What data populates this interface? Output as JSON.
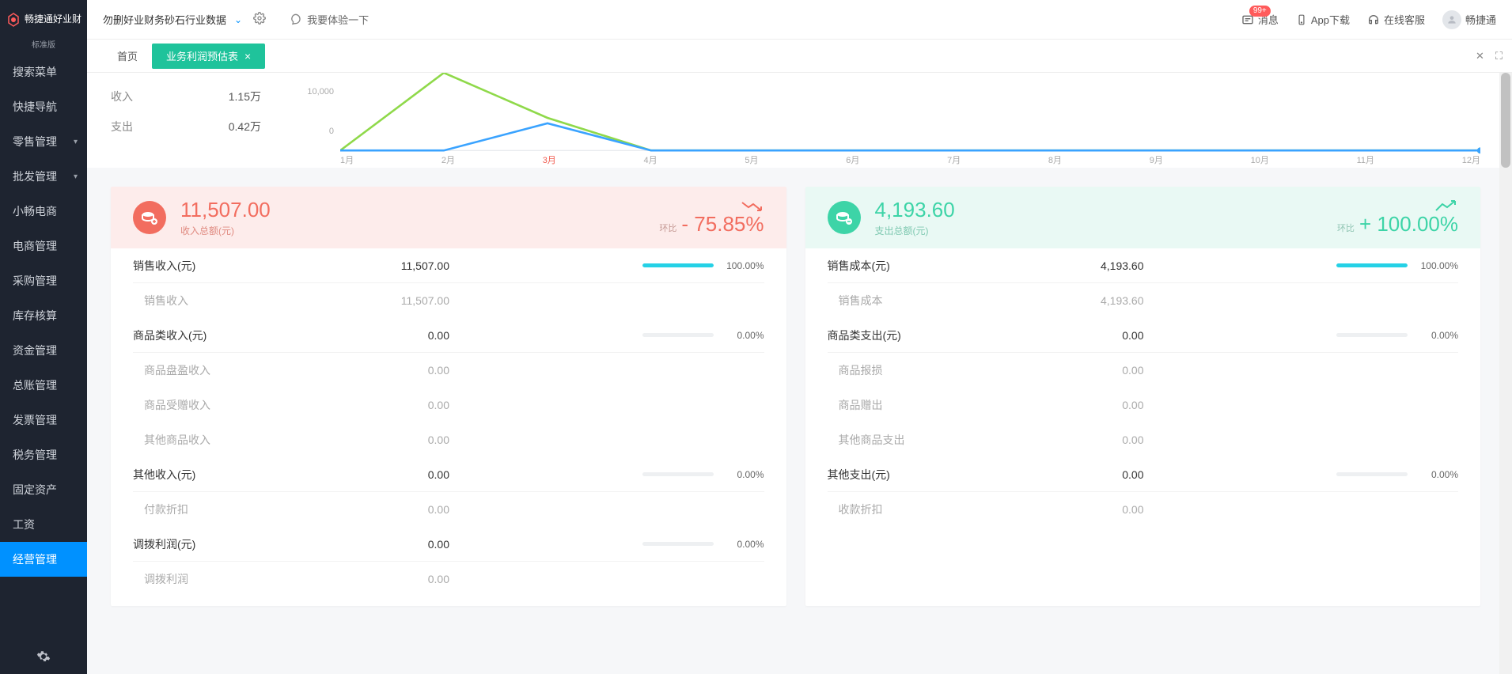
{
  "brand": {
    "name": "畅捷通好业财",
    "edition": "标准版"
  },
  "org": {
    "name": "勿删好业财务砂石行业数据"
  },
  "topbar": {
    "try": "我要体验一下",
    "msg": "消息",
    "msg_badge": "99+",
    "app": "App下载",
    "cs": "在线客服",
    "user": "畅捷通"
  },
  "sidebar": {
    "items": [
      {
        "label": "搜索菜单"
      },
      {
        "label": "快捷导航"
      },
      {
        "label": "零售管理",
        "sub": true
      },
      {
        "label": "批发管理",
        "sub": true
      },
      {
        "label": "小畅电商"
      },
      {
        "label": "电商管理"
      },
      {
        "label": "采购管理"
      },
      {
        "label": "库存核算"
      },
      {
        "label": "资金管理"
      },
      {
        "label": "总账管理"
      },
      {
        "label": "发票管理"
      },
      {
        "label": "税务管理"
      },
      {
        "label": "固定资产"
      },
      {
        "label": "工资"
      },
      {
        "label": "经营管理",
        "active": true
      }
    ]
  },
  "tabs": {
    "home": "首页",
    "active": "业务利润预估表"
  },
  "summary": {
    "income_label": "收入",
    "income_value": "1.15万",
    "expense_label": "支出",
    "expense_value": "0.42万"
  },
  "chart": {
    "y_tick_label": "10,000",
    "y_zero": "0",
    "months": [
      "1月",
      "2月",
      "3月",
      "4月",
      "5月",
      "6月",
      "7月",
      "8月",
      "9月",
      "10月",
      "11月",
      "12月"
    ],
    "hot_index": 2,
    "series1": {
      "color": "#3aa3ff",
      "points": [
        0,
        0,
        35,
        0,
        0,
        0,
        0,
        0,
        0,
        0,
        0,
        0
      ]
    },
    "series2": {
      "color": "#8fd94a",
      "points": [
        0,
        100,
        42,
        0,
        0,
        0,
        0,
        0,
        0,
        0,
        0,
        0
      ]
    }
  },
  "income_card": {
    "amount": "11,507.00",
    "label": "收入总额(元)",
    "hb": "环比",
    "pct": "- 75.85%",
    "rows": [
      {
        "name": "销售收入(元)",
        "val": "11,507.00",
        "pct": "100.00%",
        "bar": 100
      },
      {
        "name": "销售收入",
        "val": "11,507.00",
        "sub": true
      },
      {
        "name": "商品类收入(元)",
        "val": "0.00",
        "pct": "0.00%",
        "bar": 0
      },
      {
        "name": "商品盘盈收入",
        "val": "0.00",
        "sub": true
      },
      {
        "name": "商品受赠收入",
        "val": "0.00",
        "sub": true
      },
      {
        "name": "其他商品收入",
        "val": "0.00",
        "sub": true
      },
      {
        "name": "其他收入(元)",
        "val": "0.00",
        "pct": "0.00%",
        "bar": 0
      },
      {
        "name": "付款折扣",
        "val": "0.00",
        "sub": true
      },
      {
        "name": "调拨利润(元)",
        "val": "0.00",
        "pct": "0.00%",
        "bar": 0
      },
      {
        "name": "调拨利润",
        "val": "0.00",
        "sub": true
      }
    ]
  },
  "expense_card": {
    "amount": "4,193.60",
    "label": "支出总额(元)",
    "hb": "环比",
    "pct": "+ 100.00%",
    "rows": [
      {
        "name": "销售成本(元)",
        "val": "4,193.60",
        "pct": "100.00%",
        "bar": 100
      },
      {
        "name": "销售成本",
        "val": "4,193.60",
        "sub": true
      },
      {
        "name": "商品类支出(元)",
        "val": "0.00",
        "pct": "0.00%",
        "bar": 0
      },
      {
        "name": "商品报损",
        "val": "0.00",
        "sub": true
      },
      {
        "name": "商品赠出",
        "val": "0.00",
        "sub": true
      },
      {
        "name": "其他商品支出",
        "val": "0.00",
        "sub": true
      },
      {
        "name": "其他支出(元)",
        "val": "0.00",
        "pct": "0.00%",
        "bar": 0
      },
      {
        "name": "收款折扣",
        "val": "0.00",
        "sub": true
      }
    ]
  }
}
